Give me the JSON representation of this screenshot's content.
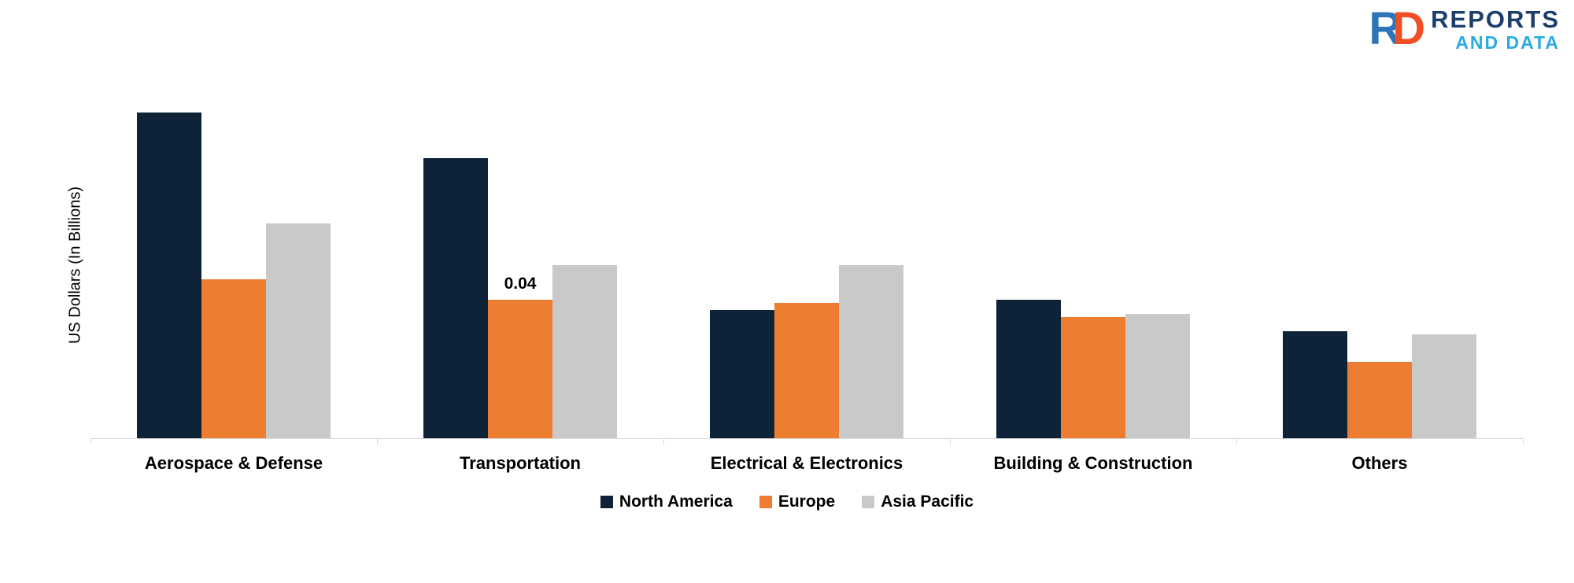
{
  "logo": {
    "mark_r": "R",
    "mark_d": "D",
    "line1": "REPORTS",
    "line2": "AND DATA",
    "colors": {
      "mark_r": "#2d74b9",
      "mark_d": "#f04e23",
      "line1": "#1b3e6b",
      "line2": "#29abe2"
    }
  },
  "chart_data": {
    "type": "bar",
    "title": "",
    "xlabel": "",
    "ylabel": "US Dollars (In Billions)",
    "ylim": [
      0,
      0.1
    ],
    "grid": false,
    "legend_position": "bottom",
    "categories": [
      "Aerospace & Defense",
      "Transportation",
      "Electrical & Electronics",
      "Building & Construction",
      "Others"
    ],
    "series": [
      {
        "name": "North America",
        "color": "#0e2337",
        "values": [
          0.094,
          0.081,
          0.037,
          0.04,
          0.031
        ]
      },
      {
        "name": "Europe",
        "color": "#ed7d31",
        "values": [
          0.046,
          0.04,
          0.039,
          0.035,
          0.022
        ]
      },
      {
        "name": "Asia Pacific",
        "color": "#c9c9c9",
        "values": [
          0.062,
          0.05,
          0.05,
          0.036,
          0.03
        ]
      }
    ],
    "data_labels": [
      {
        "series": "Europe",
        "category": "Transportation",
        "text": "0.04"
      }
    ],
    "axis_color": "#d9d9d9"
  }
}
